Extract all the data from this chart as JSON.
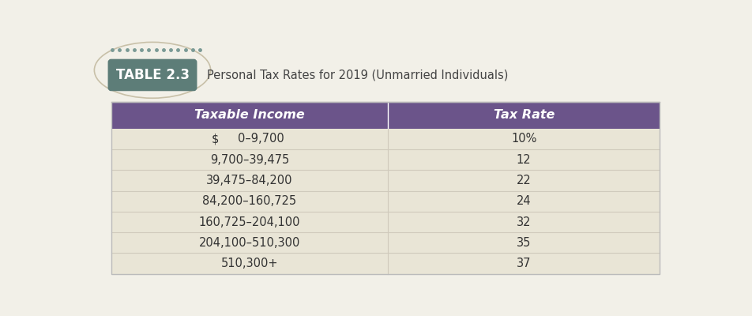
{
  "table_label": "TABLE 2.3",
  "table_title": "Personal Tax Rates for 2019 (Unmarried Individuals)",
  "col_headers": [
    "Taxable Income",
    "Tax Rate"
  ],
  "rows": [
    [
      "0–9,700",
      "10%"
    ],
    [
      "9,700–39,475",
      "12"
    ],
    [
      "39,475–84,200",
      "22"
    ],
    [
      "84,200–160,725",
      "24"
    ],
    [
      "160,725–204,100",
      "32"
    ],
    [
      "204,100–510,300",
      "35"
    ],
    [
      "510,300+",
      "37"
    ]
  ],
  "header_bg_color": "#6B548A",
  "header_text_color": "#FFFFFF",
  "row_bg_color": "#E9E5D6",
  "table_border_color": "#BBBBBB",
  "row_sep_color": "#D0CABC",
  "col_div_color": "#9988AA",
  "label_bg_color": "#5A7A6A",
  "label_text_color": "#FFFFFF",
  "dots_color": "#7B9B8B",
  "title_text_color": "#444444",
  "body_text_color": "#333333",
  "fig_bg_color": "#F2F0E8",
  "outer_border_color": "#BBBBBB",
  "label_box_color": "#4A7A70",
  "ellipse_color": "#B0A890"
}
